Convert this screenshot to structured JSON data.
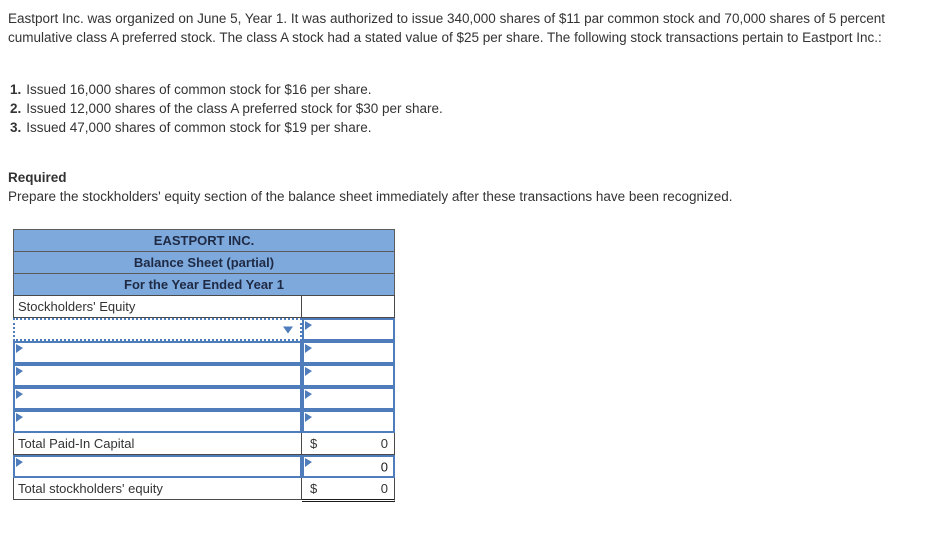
{
  "intro": "Eastport Inc. was organized on June 5, Year 1. It was authorized to issue 340,000 shares of $11 par common stock and 70,000 shares of 5 percent cumulative class A preferred stock. The class A stock had a stated value of $25 per share. The following stock transactions pertain to Eastport Inc.:",
  "transactions": [
    {
      "num": "1.",
      "text": "Issued 16,000 shares of common stock for $16 per share."
    },
    {
      "num": "2.",
      "text": "Issued 12,000 shares of the class A preferred stock for $30 per share."
    },
    {
      "num": "3.",
      "text": "Issued 47,000 shares of common stock for $19 per share."
    }
  ],
  "required": {
    "heading": "Required",
    "text": "Prepare the stockholders' equity section of the balance sheet immediately after these transactions have been recognized."
  },
  "table": {
    "title": "EASTPORT INC.",
    "subtitle1": "Balance Sheet (partial)",
    "subtitle2": "For the Year Ended Year 1",
    "section_label": "Stockholders' Equity",
    "dropdown": {
      "selected_value": ""
    },
    "empty_input_rows": 4,
    "total_paid_in": {
      "label": "Total Paid-In Capital",
      "dollar": "$",
      "value": "0"
    },
    "pre_total_row": {
      "value": "0"
    },
    "total_equity": {
      "label": "Total stockholders' equity",
      "dollar": "$",
      "value": "0"
    },
    "icons": {
      "dropdown_arrow": "triangle-down",
      "cell_marker": "triangle-right"
    },
    "colors": {
      "header_bg": "#7da9dd",
      "header_text": "#1f2a44",
      "input_border": "#4f7cba",
      "grid_border": "#4a4a4a",
      "body_text": "#333333"
    }
  }
}
